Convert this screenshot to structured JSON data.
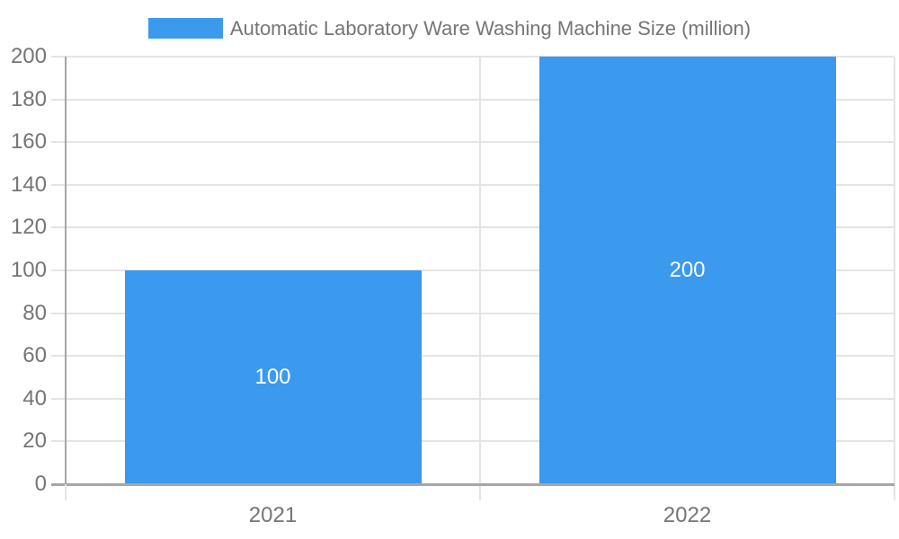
{
  "chart_data": {
    "type": "bar",
    "title": "Automatic Laboratory Ware Washing Machine Size (million)",
    "legend": {
      "position": "top",
      "label": "Automatic Laboratory Ware Washing Machine Size (million)",
      "swatch_color": "#3B99EE"
    },
    "categories": [
      "2021",
      "2022"
    ],
    "values": [
      100,
      200
    ],
    "bar_value_labels": [
      "100",
      "200"
    ],
    "xlabel": "",
    "ylabel": "",
    "ylim": [
      0,
      200
    ],
    "yticks": [
      0,
      20,
      40,
      60,
      80,
      100,
      120,
      140,
      160,
      180,
      200
    ],
    "grid": true,
    "colors": {
      "bar": "#3B99EE",
      "grid_line": "#e4e4e4",
      "axis_line": "#a6a6a6",
      "axis_text": "#757575",
      "value_label_text": "#ffffff",
      "background": "#ffffff"
    }
  }
}
